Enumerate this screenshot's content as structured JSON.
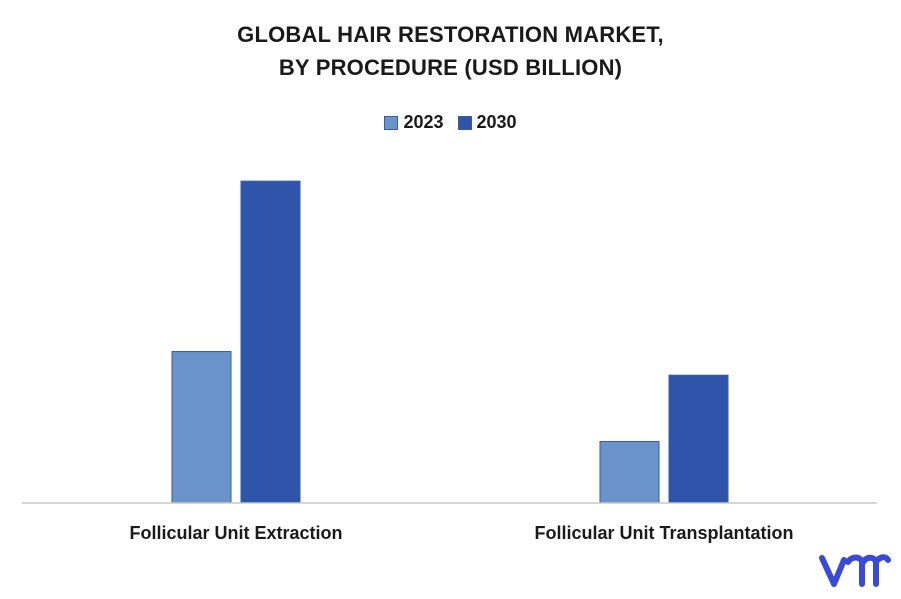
{
  "chart_data": {
    "type": "bar",
    "title_lines": [
      "GLOBAL HAIR RESTORATION MARKET,",
      "BY PROCEDURE (USD BILLION)"
    ],
    "categories": [
      "Follicular Unit Extraction",
      "Follicular Unit Transplantation"
    ],
    "series": [
      {
        "name": "2023",
        "color": "#6a93cb",
        "values": [
          3.2,
          1.3
        ]
      },
      {
        "name": "2030",
        "color": "#2f55aa",
        "values": [
          6.8,
          2.7
        ]
      }
    ],
    "ylim": [
      0,
      7.5
    ],
    "grid": false,
    "legend_position": "top-center"
  },
  "logo": {
    "icon": "vmr-logo-icon",
    "color": "#3a49d6"
  }
}
